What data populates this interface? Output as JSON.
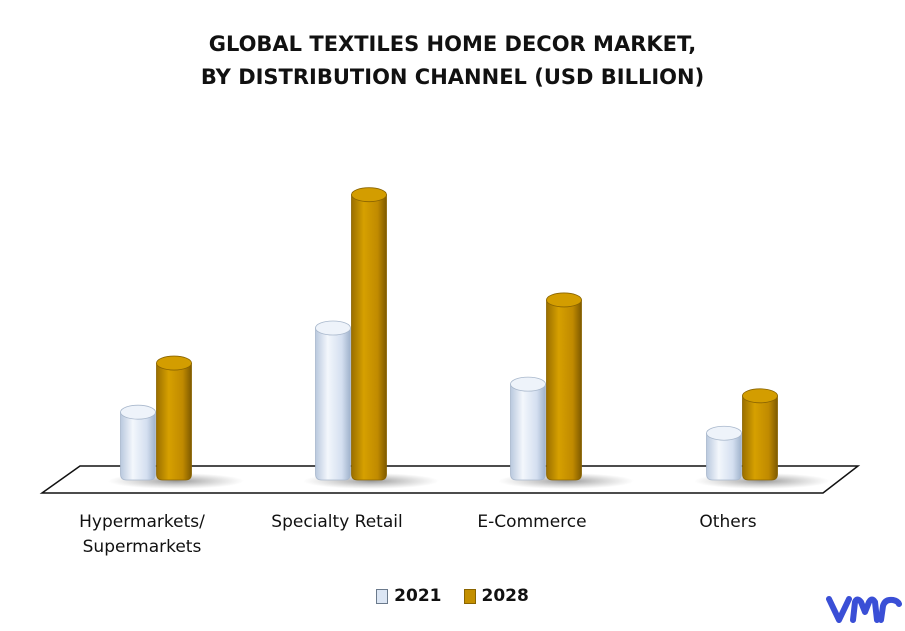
{
  "chart_data": {
    "type": "bar",
    "title_lines": [
      "GLOBAL TEXTILES HOME DECOR MARKET,",
      "BY DISTRIBUTION CHANNEL (USD BILLION)"
    ],
    "categories": [
      "Hypermarkets/ Supermarkets",
      "Specialty Retail",
      "E-Commerce",
      "Others"
    ],
    "category_label_lines": [
      [
        "Hypermarkets/",
        "Supermarkets"
      ],
      [
        "Specialty Retail"
      ],
      [
        "E-Commerce"
      ],
      [
        "Others"
      ]
    ],
    "series": [
      {
        "name": "2021",
        "values": [
          14.5,
          32.5,
          20.5,
          10.0
        ],
        "color": "#dce6f4"
      },
      {
        "name": "2028",
        "values": [
          25.0,
          61.0,
          38.5,
          18.0
        ],
        "color": "#c49000"
      }
    ],
    "ylim": [
      0,
      65
    ],
    "grid": false,
    "legend_position": "bottom"
  },
  "brand": {
    "logo_icon": "vmr-logo-icon",
    "logo_color": "#3a4fd6"
  }
}
